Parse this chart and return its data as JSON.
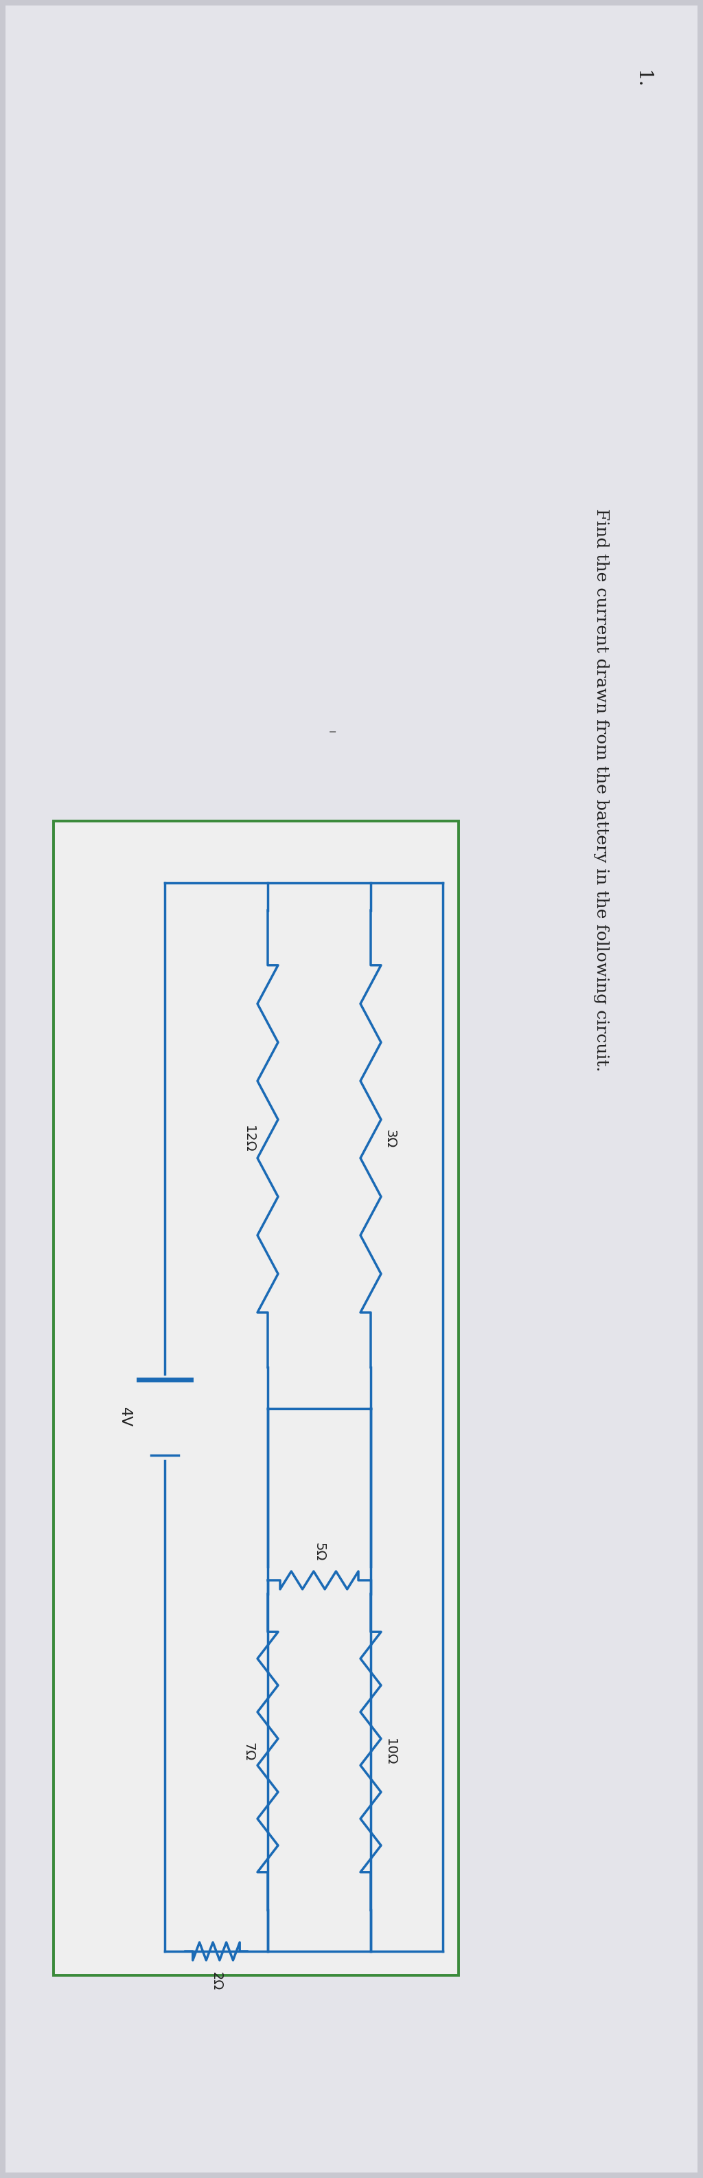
{
  "bg_color": "#c8c8d0",
  "page_bg": "#e4e4ea",
  "q_num": "1.",
  "q_text": "Find the current drawn from the battery in the following circuit.",
  "box_edge_color": "#3a8a3a",
  "wire_color": "#1a6ab5",
  "wire_lw": 2.5,
  "resistor_labels": [
    "3Ω",
    "12Ω",
    "5Ω",
    "7Ω",
    "10Ω",
    "2Ω"
  ],
  "battery_label": "4V",
  "text_color": "#222222",
  "q_fontsize": 18,
  "label_fontsize": 14,
  "fig_width": 10.24,
  "fig_height": 31.7
}
